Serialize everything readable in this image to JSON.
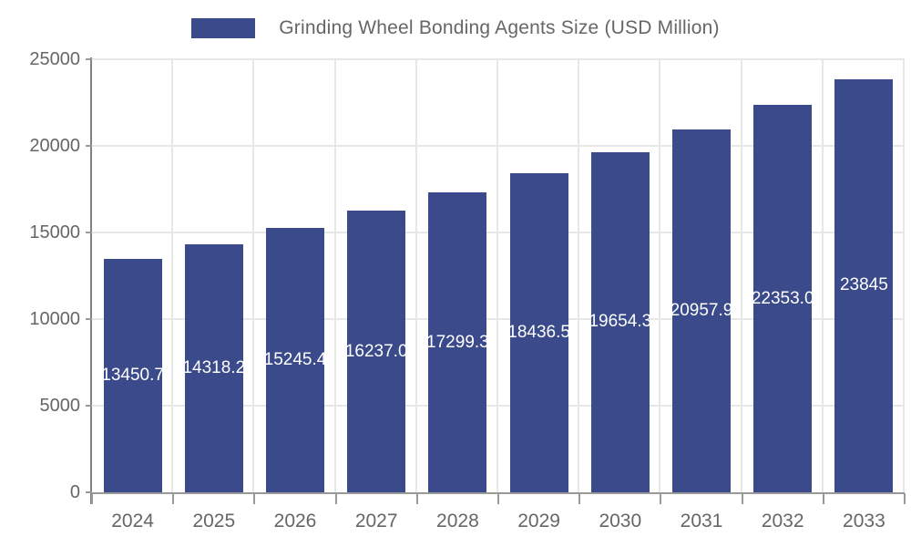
{
  "chart_data": {
    "type": "bar",
    "title": "Grinding Wheel Bonding Agents Size (USD Million)",
    "legend_label": "Grinding Wheel Bonding Agents Size (USD Million)",
    "legend_position": "top",
    "categories": [
      "2024",
      "2025",
      "2026",
      "2027",
      "2028",
      "2029",
      "2030",
      "2031",
      "2032",
      "2033"
    ],
    "values": [
      13450.7,
      14318.2,
      15245.4,
      16237.0,
      17299.3,
      18436.5,
      19654.3,
      20957.9,
      22353.0,
      23845
    ],
    "bar_labels": [
      "13450.7",
      "14318.2",
      "15245.4",
      "16237.0",
      "17299.3",
      "18436.5",
      "19654.3",
      "20957.9",
      "22353.0",
      "23845"
    ],
    "xlabel": "",
    "ylabel": "",
    "ylim": [
      0,
      25000
    ],
    "yticks": [
      0,
      5000,
      10000,
      15000,
      20000,
      25000
    ],
    "ytick_labels": [
      "0",
      "5000",
      "10000",
      "15000",
      "20000",
      "25000"
    ],
    "grid": true,
    "colors": {
      "bar": "#3A4A8A",
      "bar_label_text": "#FFFFFF",
      "axis_text": "#666666",
      "grid_line": "#E7E7E7",
      "y_axis_line": "#808080",
      "x_axis_line": "#999999",
      "background": "#FFFFFF"
    }
  }
}
